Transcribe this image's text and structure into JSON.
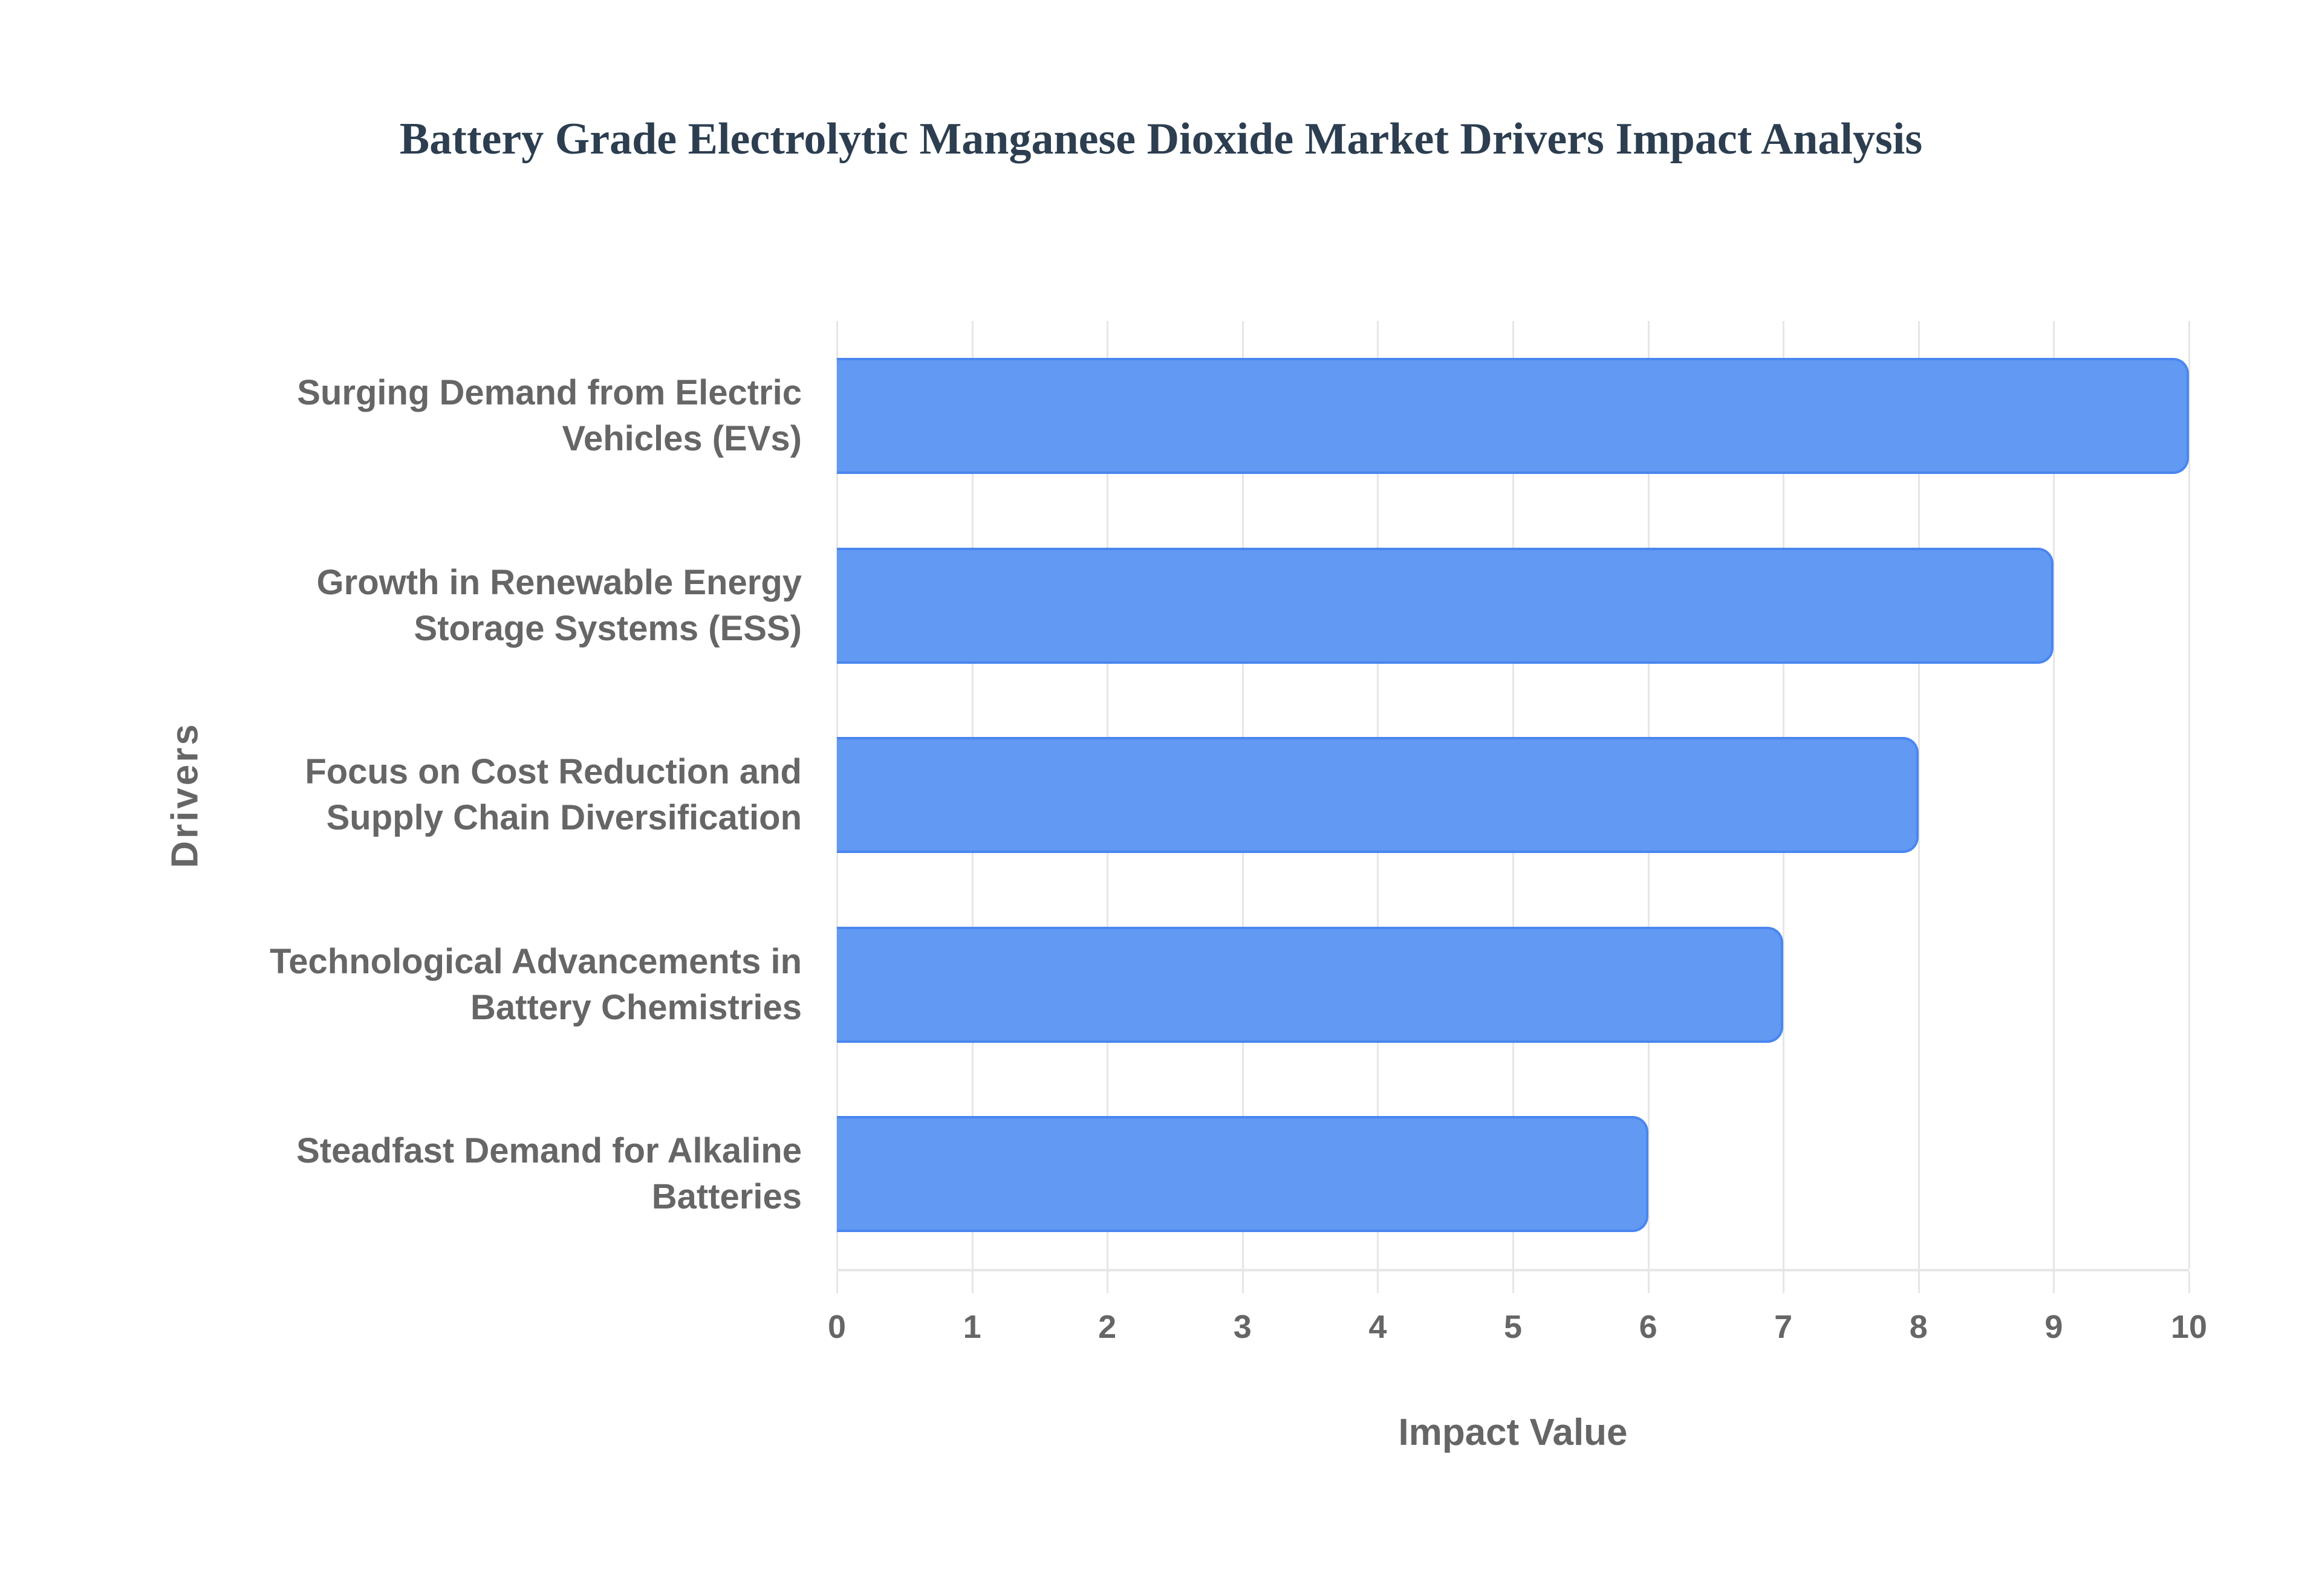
{
  "chart_data": {
    "type": "bar",
    "orientation": "horizontal",
    "title": "Battery Grade Electrolytic Manganese Dioxide Market Drivers Impact Analysis",
    "xlabel": "Impact Value",
    "ylabel": "Drivers",
    "categories": [
      "Surging Demand from Electric Vehicles (EVs)",
      "Growth in Renewable Energy Storage Systems (ESS)",
      "Focus on Cost Reduction and Supply Chain Diversification",
      "Technological Advancements in Battery Chemistries",
      "Steadfast Demand for Alkaline Batteries"
    ],
    "values": [
      10,
      9,
      8,
      7,
      6
    ],
    "xlim": [
      0,
      10
    ],
    "xticks": [
      "0",
      "1",
      "2",
      "3",
      "4",
      "5",
      "6",
      "7",
      "8",
      "9",
      "10"
    ],
    "grid": true,
    "legend": null,
    "bar_color": "#6199f3",
    "bar_border_color": "#4a86ef"
  },
  "labels": [
    {
      "line1": "Surging Demand from Electric",
      "line2": "Vehicles (EVs)"
    },
    {
      "line1": "Growth in Renewable Energy",
      "line2": "Storage Systems (ESS)"
    },
    {
      "line1": "Focus on Cost Reduction and",
      "line2": "Supply Chain Diversification"
    },
    {
      "line1": "Technological Advancements in",
      "line2": "Battery Chemistries"
    },
    {
      "line1": "Steadfast Demand for Alkaline",
      "line2": "Batteries"
    }
  ]
}
